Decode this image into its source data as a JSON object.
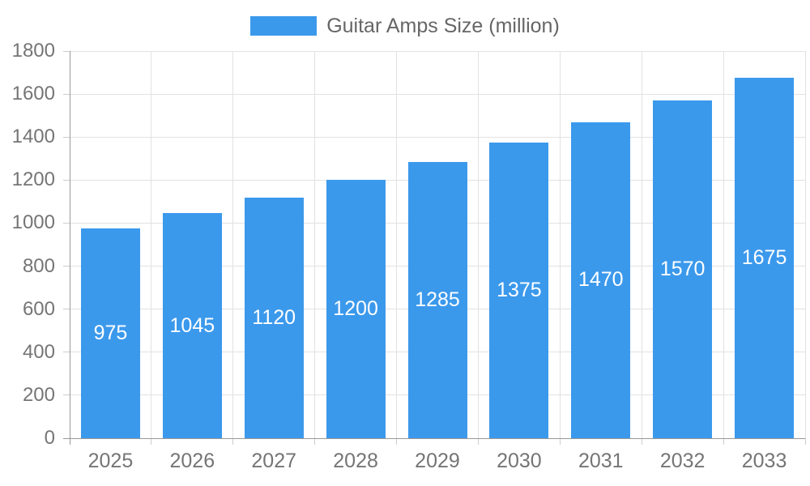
{
  "chart_data": {
    "type": "bar",
    "title": "",
    "series_name": "Guitar Amps Size (million)",
    "categories": [
      "2025",
      "2026",
      "2027",
      "2028",
      "2029",
      "2030",
      "2031",
      "2032",
      "2033"
    ],
    "values": [
      975,
      1045,
      1120,
      1200,
      1285,
      1375,
      1470,
      1570,
      1675
    ],
    "xlabel": "",
    "ylabel": "",
    "ylim": [
      0,
      1800
    ],
    "ytick_step": 200,
    "grid": true,
    "legend_position": "top-center",
    "bar_label_position": "inside-center",
    "colors": {
      "bar": "#3B99EC",
      "grid": "#E2E2E2",
      "axis": "#999999",
      "tick": "#CCCCCC",
      "axis_label_text": "#757575",
      "legend_text": "#666666",
      "bar_label_text": "#FFFFFF",
      "background": "#FFFFFF"
    }
  }
}
